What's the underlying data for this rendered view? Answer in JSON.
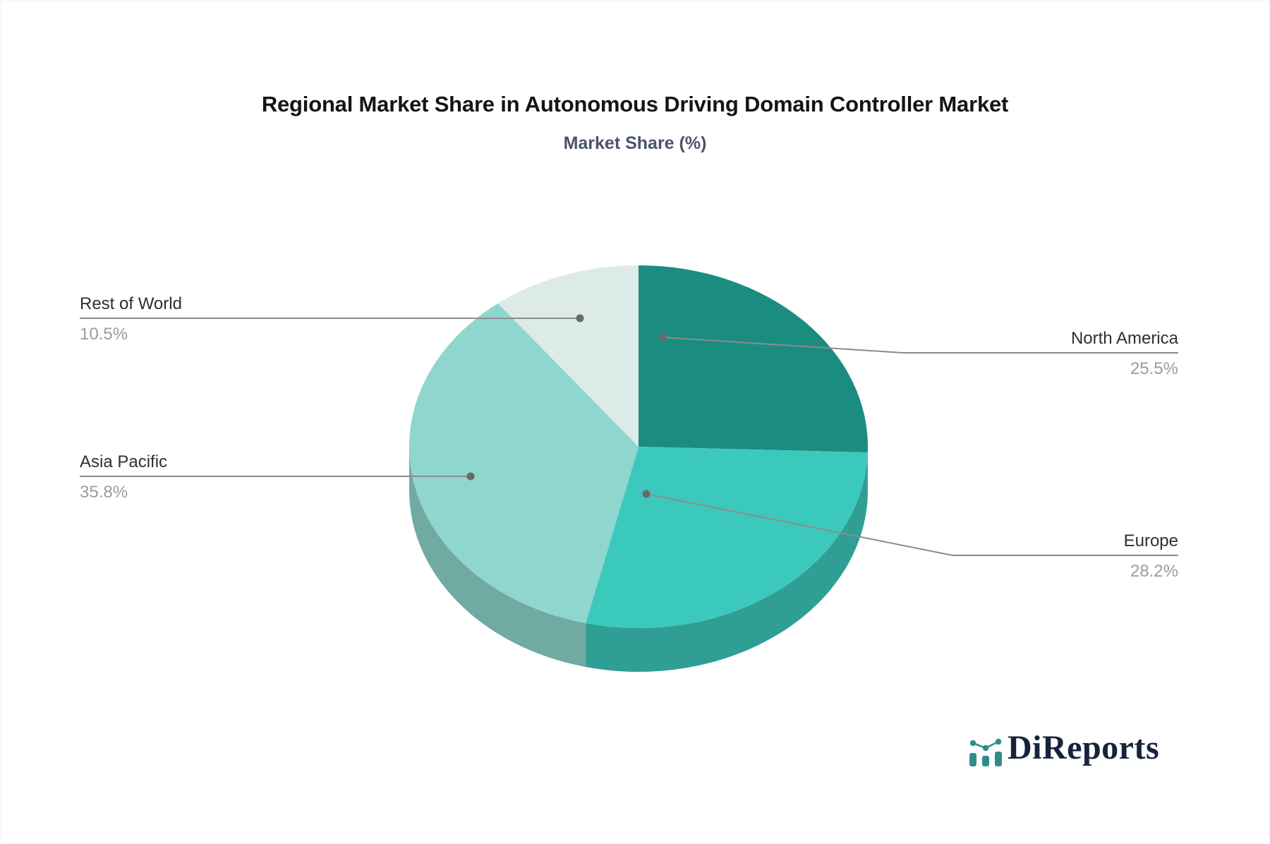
{
  "title": "Regional Market Share in Autonomous Driving Domain Controller Market",
  "subtitle": "Market Share (%)",
  "brand": {
    "name": "DiReports",
    "icon": "bar-line-chart-icon",
    "text_color": "#17233C",
    "icon_color": "#2F8E89"
  },
  "colors": {
    "leader_line": "#8C8C8C",
    "leader_dot": "#696969",
    "label_text": "#2F2F2F",
    "percent_text": "#9C9C9C",
    "title_text": "#141414",
    "subtitle_text": "#4A5568"
  },
  "chart_data": {
    "type": "pie",
    "style": "3d",
    "title": "Regional Market Share in Autonomous Driving Domain Controller Market",
    "subtitle": "Market Share (%)",
    "unit": "%",
    "start_angle_deg": 0,
    "direction": "clockwise",
    "legend": "none",
    "slices": [
      {
        "label": "North America",
        "value": 25.5,
        "pct": "25.5%",
        "color": "#1A8D80",
        "label_side": "right"
      },
      {
        "label": "Europe",
        "value": 28.2,
        "pct": "28.2%",
        "color": "#3CC9BD",
        "label_side": "right"
      },
      {
        "label": "Asia Pacific",
        "value": 35.8,
        "pct": "35.8%",
        "color": "#8FD6CE",
        "label_side": "left"
      },
      {
        "label": "Rest of World",
        "value": 10.5,
        "pct": "10.5%",
        "color": "#DCEBE7",
        "label_side": "left"
      }
    ]
  }
}
